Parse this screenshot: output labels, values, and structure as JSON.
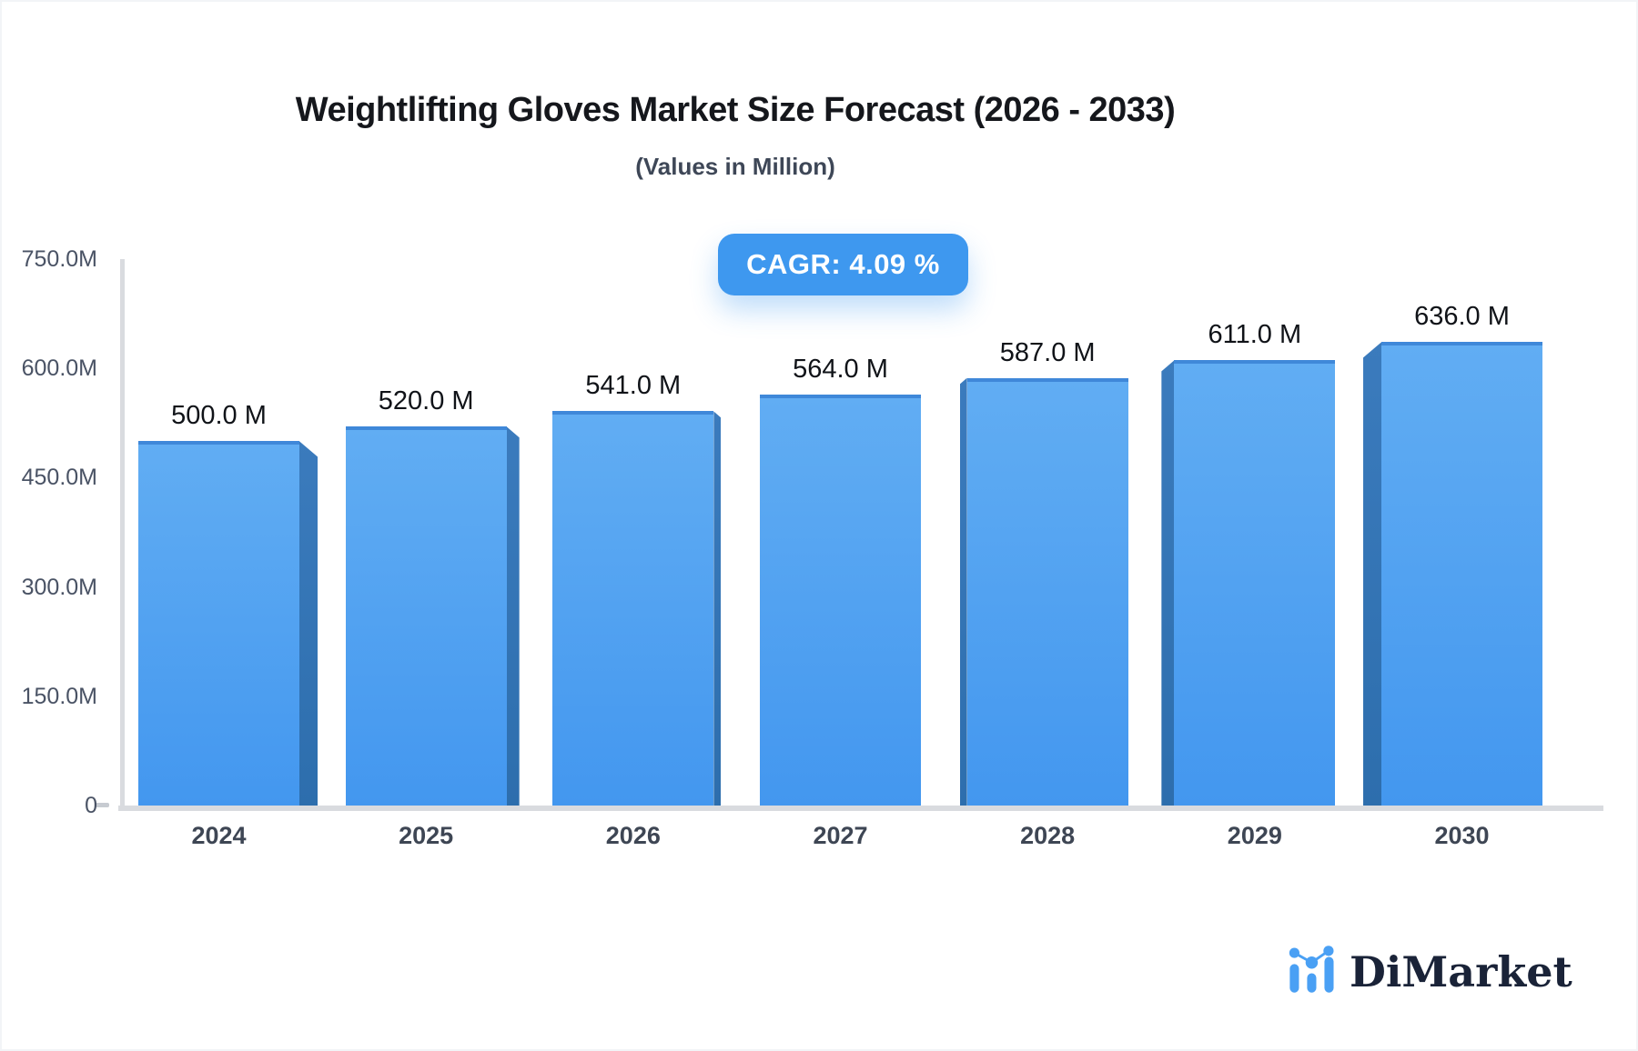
{
  "header": {
    "title": "Weightlifting Gloves Market Size Forecast (2026 - 2033)",
    "subtitle": "(Values in Million)"
  },
  "badge": {
    "label": "CAGR: 4.09 %"
  },
  "chart_data": {
    "type": "bar",
    "title": "Weightlifting Gloves Market Size Forecast (2026 - 2033)",
    "subtitle": "(Values in Million)",
    "categories": [
      "2024",
      "2025",
      "2026",
      "2027",
      "2028",
      "2029",
      "2030"
    ],
    "values": [
      500.0,
      520.0,
      541.0,
      564.0,
      587.0,
      611.0,
      636.0
    ],
    "value_labels": [
      "500.0 M",
      "520.0 M",
      "541.0 M",
      "564.0 M",
      "587.0 M",
      "611.0 M",
      "636.0 M"
    ],
    "unit": "Million",
    "cagr": "4.09 %",
    "xlabel": "",
    "ylabel": "",
    "ylim": [
      0,
      750
    ],
    "yticks": [
      {
        "label": "0",
        "value": 0
      },
      {
        "label": "150.0M",
        "value": 150
      },
      {
        "label": "300.0M",
        "value": 300
      },
      {
        "label": "450.0M",
        "value": 450
      },
      {
        "label": "600.0M",
        "value": 600
      },
      {
        "label": "750.0M",
        "value": 750
      }
    ],
    "grid": false,
    "legend": false,
    "style": "3d-perspective-bars"
  },
  "logo": {
    "text": "DiMarket",
    "icon": "bar-chart-trend-icon"
  },
  "colors": {
    "badge_bg": "#3e98ef",
    "bar_face_top": "#61adf3",
    "bar_face_bottom": "#4397ef",
    "bar_top_edge": "#3f88d9",
    "bar_side": "#2d6ead",
    "axis_gray": "#d9dbdf",
    "title_text": "#15171c",
    "logo_navy": "#1a2338",
    "logo_blue": "#4aa0f4"
  }
}
